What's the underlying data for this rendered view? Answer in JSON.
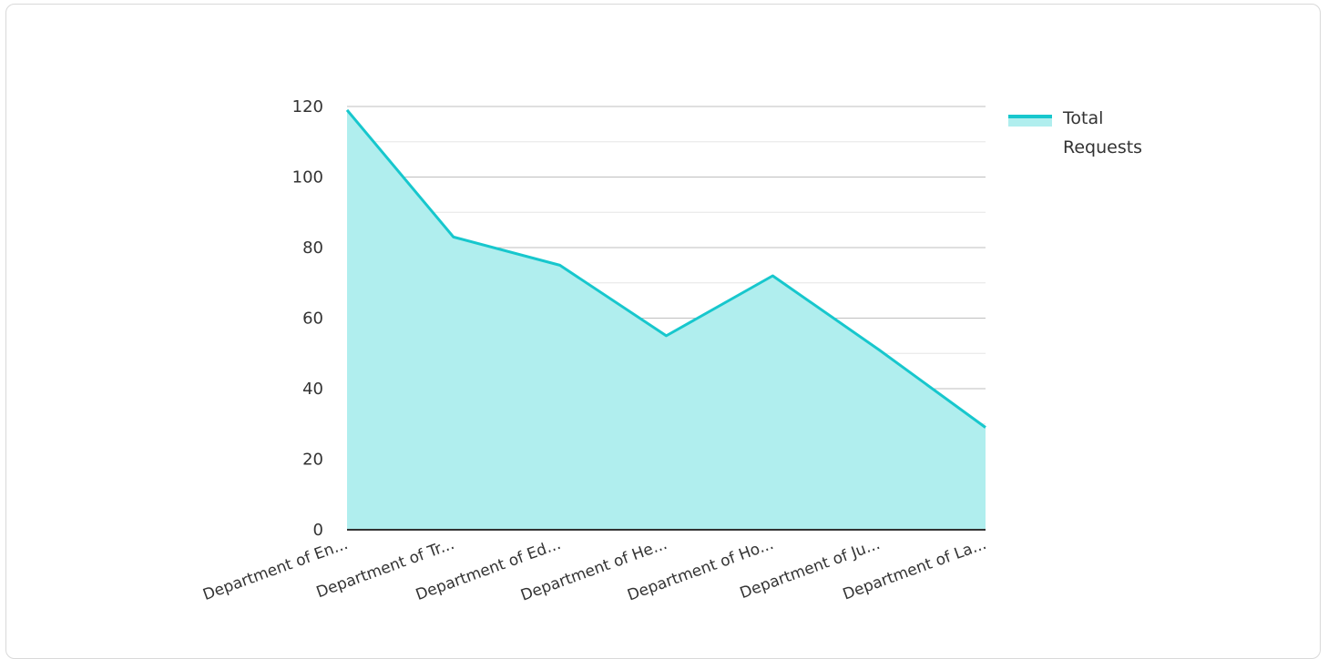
{
  "chart_data": {
    "type": "area",
    "categories": [
      "Department of En...",
      "Department of Tr...",
      "Department of Ed...",
      "Department of He...",
      "Department of Ho...",
      "Department of Ju...",
      "Department of La..."
    ],
    "series": [
      {
        "name": "Total Requests",
        "values": [
          119,
          83,
          75,
          55,
          72,
          51,
          29
        ]
      }
    ],
    "y_ticks": [
      "0",
      "20",
      "40",
      "60",
      "80",
      "100",
      "120"
    ],
    "ylim": [
      0,
      120
    ],
    "grid": true,
    "legend_position": "top-right",
    "colors": {
      "line": "#17c7cd",
      "fill": "#b0eeee",
      "grid_major": "#bfbfbf",
      "grid_minor": "#e6e6e6",
      "axis": "#333333"
    }
  }
}
